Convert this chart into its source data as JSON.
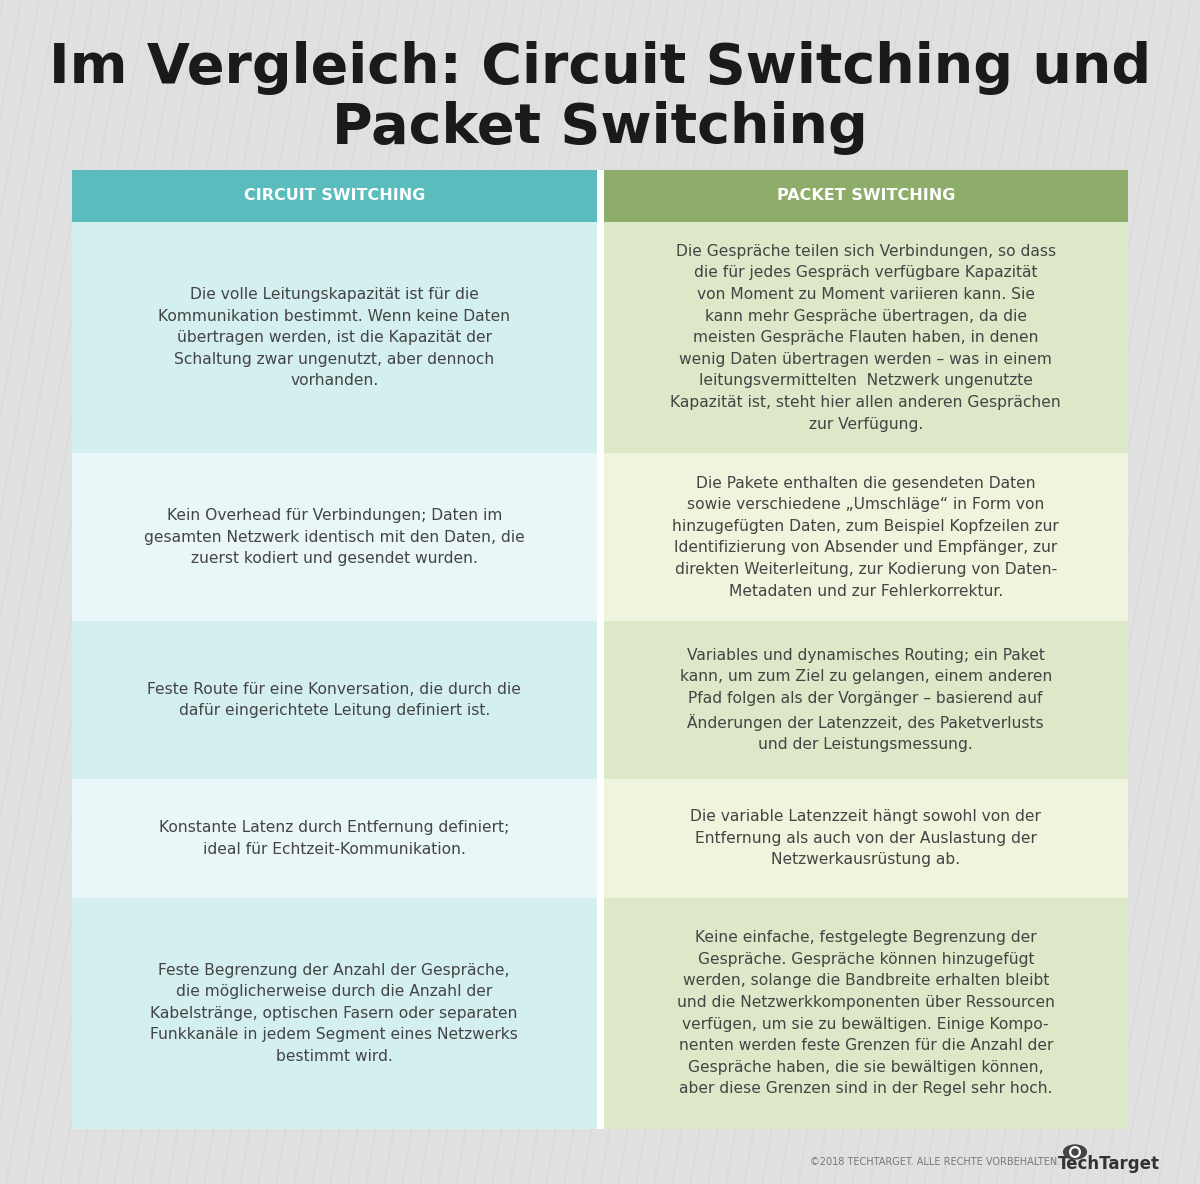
{
  "title_line1": "Im Vergleich: Circuit Switching und",
  "title_line2": "Packet Switching",
  "bg_color": "#e0e0e0",
  "table_bg": "#ffffff",
  "header_left_color": "#5bbcbe",
  "header_right_color": "#8fad6a",
  "header_left_text": "CIRCUIT SWITCHING",
  "header_right_text": "PACKET SWITCHING",
  "header_text_color": "#ffffff",
  "cell_left_colors": [
    "#d4eff0",
    "#eaf7f8",
    "#d4eff0",
    "#eaf7f8",
    "#d4eff0"
  ],
  "cell_right_colors": [
    "#dce8c8",
    "#eef5dc",
    "#dce8c8",
    "#eef5dc",
    "#dce8c8"
  ],
  "text_color": "#444444",
  "row_left": [
    "Die volle Leitungskapazität ist für die\nKommunikation bestimmt. Wenn keine Daten\nübertragen werden, ist die Kapazität der\nSchaltung zwar ungenutzt, aber dennoch\nvorhanden.",
    "Kein Overhead für Verbindungen; Daten im\ngesamten Netzwerk identisch mit den Daten, die\nzuerst kodiert und gesendet wurden.",
    "Feste Route für eine Konversation, die durch die\ndafür eingerichtete Leitung definiert ist.",
    "Konstante Latenz durch Entfernung definiert;\nideal für Echtzeit-Kommunikation.",
    "Feste Begrenzung der Anzahl der Gespräche,\ndie möglicherweise durch die Anzahl der\nKabelstränge, optischen Fasern oder separaten\nFunkkanäle in jedem Segment eines Netzwerks\nbestimmt wird."
  ],
  "row_right": [
    "Die Gespräche teilen sich Verbindungen, so dass\ndie für jedes Gespräch verfügbare Kapazität\nvon Moment zu Moment variieren kann. Sie\nkann mehr Gespräche übertragen, da die\nmeisten Gespräche Flauten haben, in denen\nwenig Daten übertragen werden – was in einem\nleitungsvermittelten  Netzwerk ungenutzte\nKapazität ist, steht hier allen anderen Gesprächen\nzur Verfügung.",
    "Die Pakete enthalten die gesendeten Daten\nsowie verschiedene „Umschläge“ in Form von\nhinzugefügten Daten, zum Beispiel Kopfzeilen zur\nIdentifizierung von Absender und Empfänger, zur\ndirekten Weiterleitung, zur Kodierung von Daten-\nMetadaten und zur Fehlerkorrektur.",
    "Variables und dynamisches Routing; ein Paket\nkann, um zum Ziel zu gelangen, einem anderen\nPfad folgen als der Vorgänger – basierend auf\nÄnderungen der Latenzzeit, des Paketverlusts\nund der Leistungsmessung.",
    "Die variable Latenzzeit hängt sowohl von der\nEntfernung als auch von der Auslastung der\nNetzwerkausrüstung ab.",
    "Keine einfache, festgelegte Begrenzung der\nGespräche. Gespräche können hinzugefügt\nwerden, solange die Bandbreite erhalten bleibt\nund die Netzwerkkomponenten über Ressourcen\nverfügen, um sie zu bewältigen. Einige Kompo-\nnenten werden feste Grenzen für die Anzahl der\nGespräche haben, die sie bewältigen können,\naber diese Grenzen sind in der Regel sehr hoch."
  ],
  "footer_text": "©2018 TECHTARGET. ALLE RECHTE VORBEHALTEN.",
  "footer_brand": "TechTarget"
}
